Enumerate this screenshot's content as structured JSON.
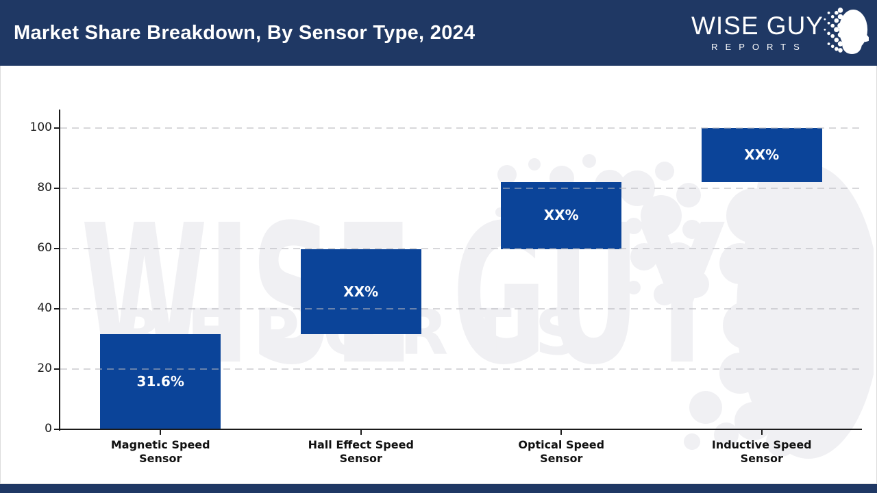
{
  "header": {
    "title": "Market Share Breakdown, By Sensor Type, 2024",
    "logo": {
      "line1": "WISE GUY",
      "line2": "REPORTS"
    }
  },
  "watermark": {
    "line1": "WISE GUY",
    "line2": "REPORTS"
  },
  "palette": {
    "header_bg": "#1f3864",
    "bar": "#0b4499",
    "bar_label": "#ffffff",
    "axis": "#1a1a1a",
    "grid": "#d9d9d9",
    "watermark": "#f0f0f3"
  },
  "chart_data": {
    "type": "bar",
    "variant": "waterfall",
    "title": "Market Share Breakdown, By Sensor Type, 2024",
    "xlabel": "",
    "ylabel": "",
    "ylim": [
      0,
      100
    ],
    "y_ticks": [
      0,
      20,
      40,
      60,
      80,
      100
    ],
    "grid": {
      "axis": "y",
      "style": "dashed"
    },
    "legend": "none",
    "bars": [
      {
        "category": "Magnetic Speed Sensor",
        "category_lines": [
          "Magnetic Speed",
          "Sensor"
        ],
        "start": 0,
        "end": 31.6,
        "label": "31.6%"
      },
      {
        "category": "Hall Effect Speed Sensor",
        "category_lines": [
          "Hall Effect Speed",
          "Sensor"
        ],
        "start": 31.6,
        "end": 59.8,
        "label": "XX%"
      },
      {
        "category": "Optical Speed Sensor",
        "category_lines": [
          "Optical Speed",
          "Sensor"
        ],
        "start": 59.8,
        "end": 82,
        "label": "XX%"
      },
      {
        "category": "Inductive Speed Sensor",
        "category_lines": [
          "Inductive Speed",
          "Sensor"
        ],
        "start": 82,
        "end": 100,
        "label": "XX%"
      }
    ]
  }
}
